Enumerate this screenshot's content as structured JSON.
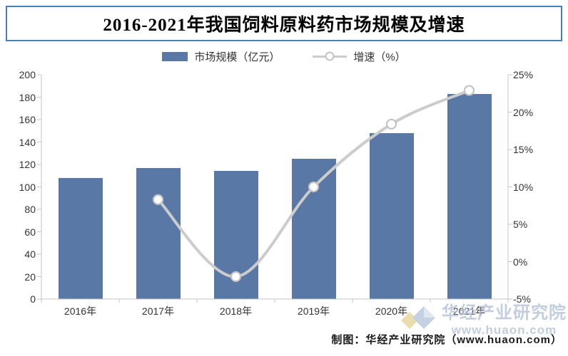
{
  "title": "2016-2021年我国饲料原料药市场规模及增速",
  "legend": {
    "bar_label": "市场规模（亿元）",
    "line_label": "增速（%）"
  },
  "chart_data": {
    "type": "combo-bar-line",
    "title": "2016-2021年我国饲料原料药市场规模及增速",
    "categories": [
      "2016年",
      "2017年",
      "2018年",
      "2019年",
      "2020年",
      "2021年"
    ],
    "series": [
      {
        "name": "市场规模（亿元）",
        "type": "bar",
        "axis": "left",
        "values": [
          108,
          117,
          114,
          125,
          148,
          183
        ],
        "color": "#5a78a5"
      },
      {
        "name": "增速（%）",
        "type": "line",
        "axis": "right",
        "values": [
          null,
          8.3,
          -2.0,
          10.0,
          18.4,
          22.9
        ],
        "color": "#cccccc"
      }
    ],
    "left_axis": {
      "min": 0,
      "max": 200,
      "step": 20,
      "ticks": [
        "0",
        "20",
        "40",
        "60",
        "80",
        "100",
        "120",
        "140",
        "160",
        "180",
        "200"
      ]
    },
    "right_axis": {
      "min": -5,
      "max": 25,
      "step": 5,
      "ticks": [
        "-5%",
        "0%",
        "5%",
        "10%",
        "15%",
        "20%",
        "25%"
      ]
    },
    "grid": false,
    "legend_position": "top"
  },
  "watermark": {
    "name": "华经产业研究院",
    "url": "www.huaon.com"
  },
  "footer": {
    "credit": "制图：华经产业研究院（www.huaon.com）"
  },
  "colors": {
    "bar": "#5a78a5",
    "line": "#cccccc",
    "marker_stroke": "#c3c3c3",
    "title_border": "#4a7ebb",
    "axis": "#c6c6c6",
    "watermark_text": "#b3c3d8",
    "logo_blue": "#b5c6db",
    "logo_yellow": "#e6d79a"
  }
}
